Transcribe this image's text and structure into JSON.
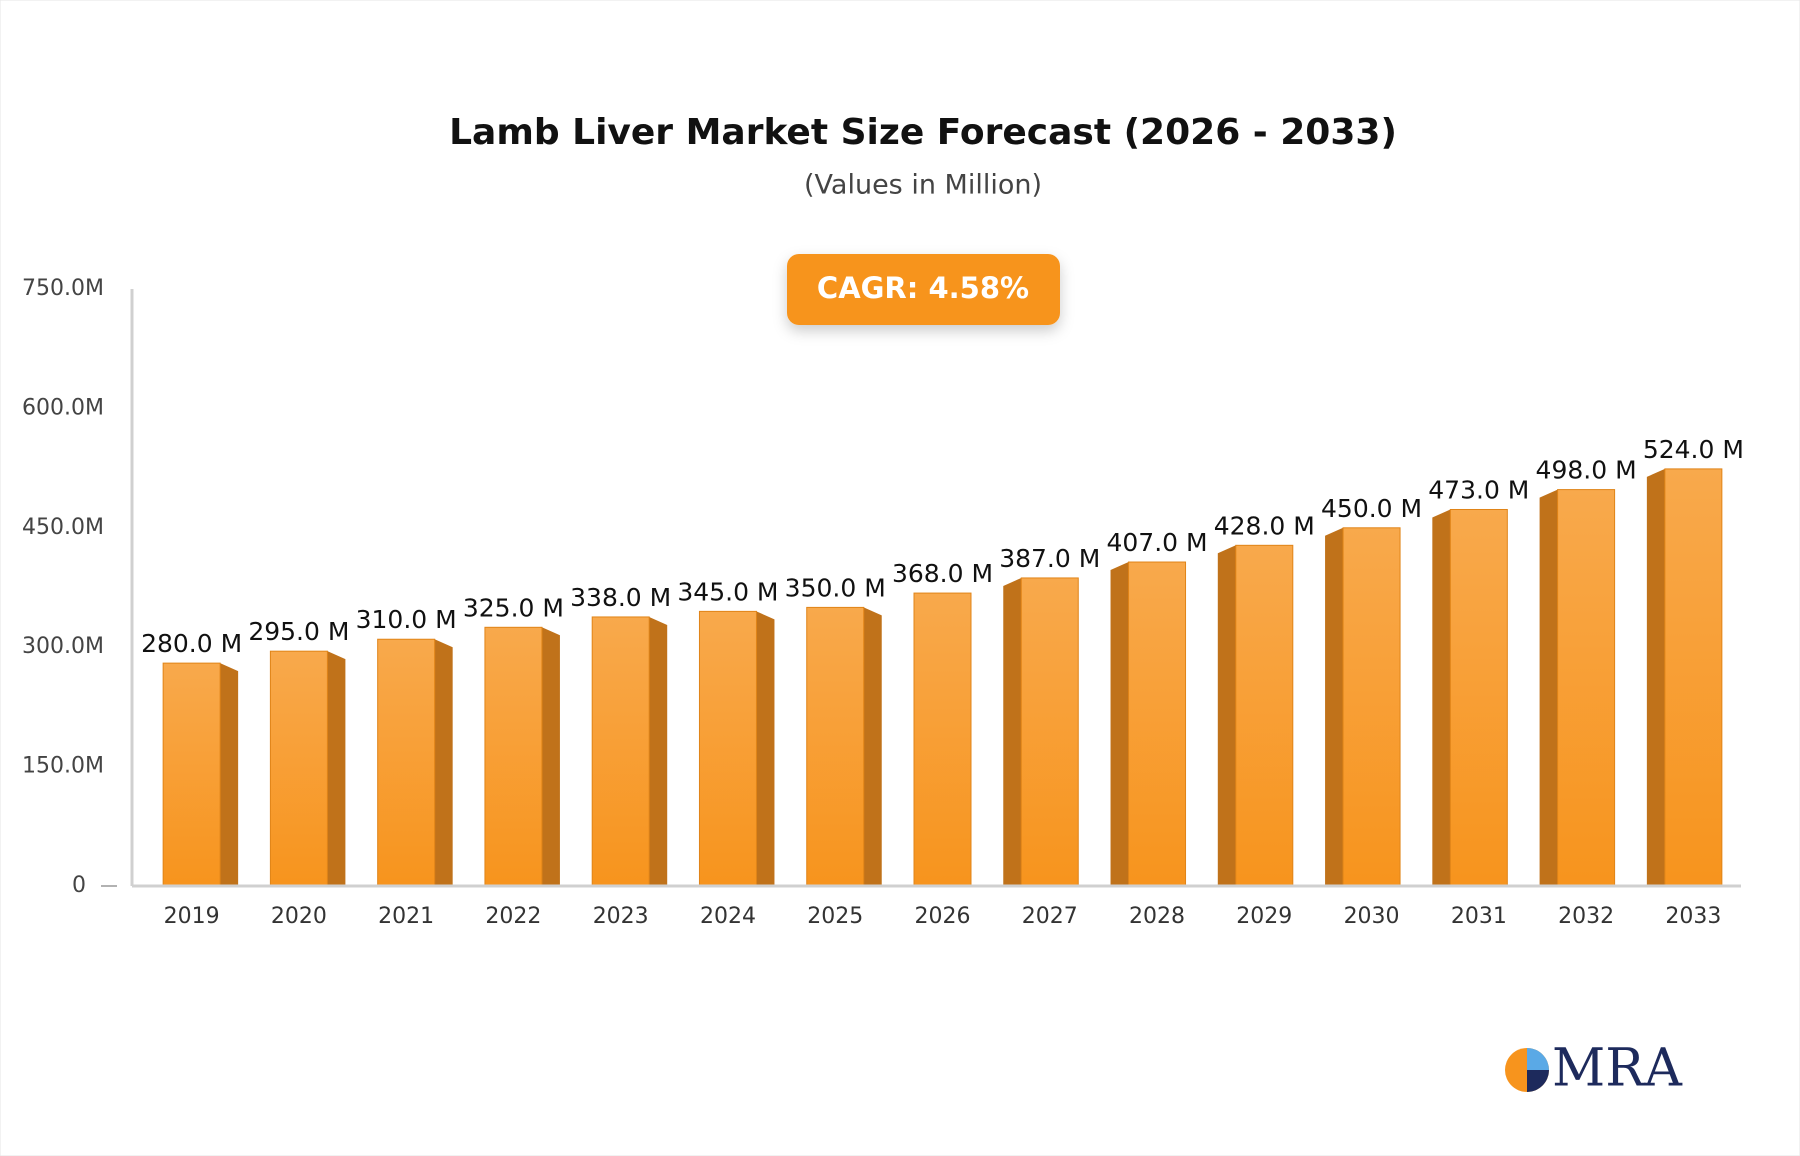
{
  "chart_data": {
    "type": "bar",
    "title": "Lamb Liver Market Size Forecast (2026 - 2033)",
    "subtitle": "(Values in Million)",
    "badge": "CAGR: 4.58%",
    "categories": [
      "2019",
      "2020",
      "2021",
      "2022",
      "2023",
      "2024",
      "2025",
      "2026",
      "2027",
      "2028",
      "2029",
      "2030",
      "2031",
      "2032",
      "2033"
    ],
    "values": [
      280.0,
      295.0,
      310.0,
      325.0,
      338.0,
      345.0,
      350.0,
      368.0,
      387.0,
      407.0,
      428.0,
      450.0,
      473.0,
      498.0,
      524.0
    ],
    "value_labels": [
      "280.0 M",
      "295.0 M",
      "310.0 M",
      "325.0 M",
      "338.0 M",
      "345.0 M",
      "350.0 M",
      "368.0 M",
      "387.0 M",
      "407.0 M",
      "428.0 M",
      "450.0 M",
      "473.0 M",
      "498.0 M",
      "524.0 M"
    ],
    "color": "#f7941d",
    "ylim": [
      0,
      750
    ],
    "yticks": [
      0,
      {
        "value": 150,
        "label": "150.0M"
      },
      {
        "value": 300,
        "label": "300.0M"
      },
      {
        "value": 450,
        "label": "450.0M"
      },
      {
        "value": 600,
        "label": "600.0M"
      },
      {
        "value": 750,
        "label": "750.0M"
      }
    ],
    "grid": false
  },
  "logo": "MRA"
}
